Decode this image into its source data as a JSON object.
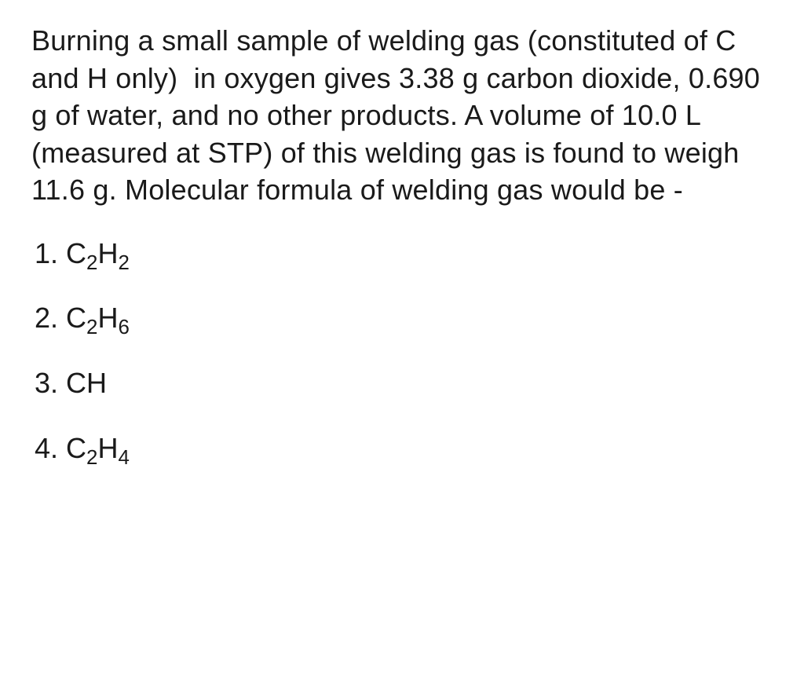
{
  "question": {
    "text_html": "Burning a small sample of welding gas (constituted of C and H only)&nbsp; in oxygen gives 3.38 g carbon dioxide, 0.690 g of water, and no other products. A volume of 10.0 L (measured at STP) of this welding gas is found to weigh 11.6 g. Molecular formula of welding gas would be -"
  },
  "options": [
    {
      "num": "1.",
      "formula_html": "C<sub>2</sub>H<sub>2</sub>"
    },
    {
      "num": "2.",
      "formula_html": "C<sub>2</sub>H<sub>6</sub>"
    },
    {
      "num": "3.",
      "formula_html": "CH"
    },
    {
      "num": "4.",
      "formula_html": "C<sub>2</sub>H<sub>4</sub>"
    }
  ],
  "style": {
    "background_color": "#ffffff",
    "text_color": "#1a1a1a",
    "font_size_pt": 27,
    "font_family": "Arial"
  }
}
